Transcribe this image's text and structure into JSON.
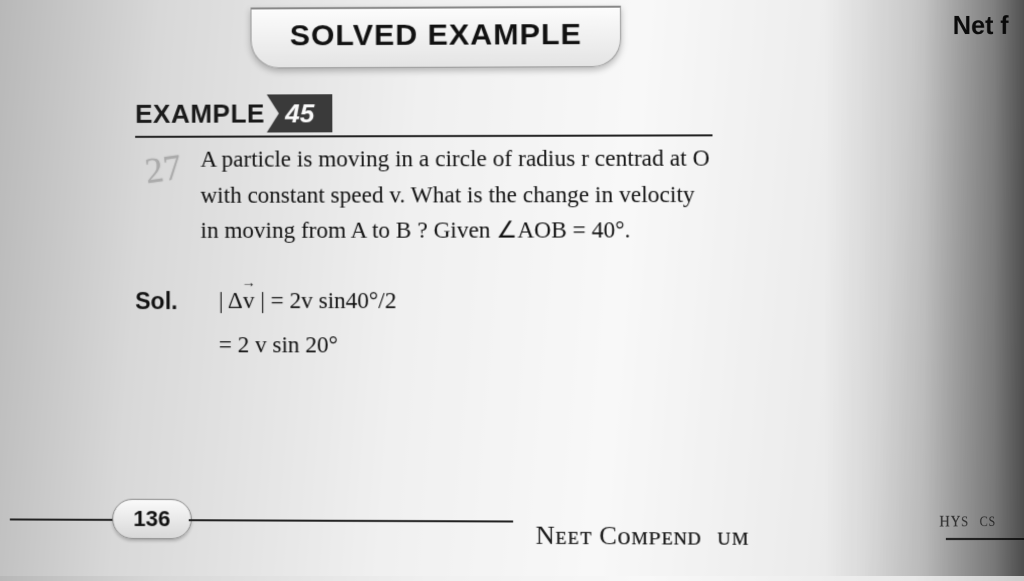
{
  "banner": {
    "title": "SOLVED EXAMPLE"
  },
  "example": {
    "label": "EXAMPLE",
    "number": "45",
    "question_mark": "27",
    "problem_line1": "A particle is moving in a circle of radius r centrad at O",
    "problem_line2": "with constant speed v. What is the change in velocity",
    "problem_line3": "in moving from A to B ? Given ∠AOB = 40°."
  },
  "solution": {
    "label": "Sol.",
    "line1_prefix": "| Δ",
    "line1_vec": "v",
    "line1_suffix": " | = 2v sin40°/2",
    "line2": "= 2 v sin 20°"
  },
  "footer": {
    "page_number": "136",
    "book_title": "Nᴇᴇᴛ Cᴏᴍᴘᴇɴᴅɪᴜᴍ"
  },
  "adjacent_page": {
    "header_fragment": "Net f",
    "subject_fragment": "ʜʏsɪcs"
  },
  "style": {
    "banner_bg_top": "#fcfcfc",
    "banner_bg_bottom": "#e4e4e4",
    "number_box_bg": "#3a3a3a",
    "text_color": "#111111",
    "page_bg": "#f0f0f0",
    "body_fontsize": 23,
    "title_fontsize": 30
  }
}
